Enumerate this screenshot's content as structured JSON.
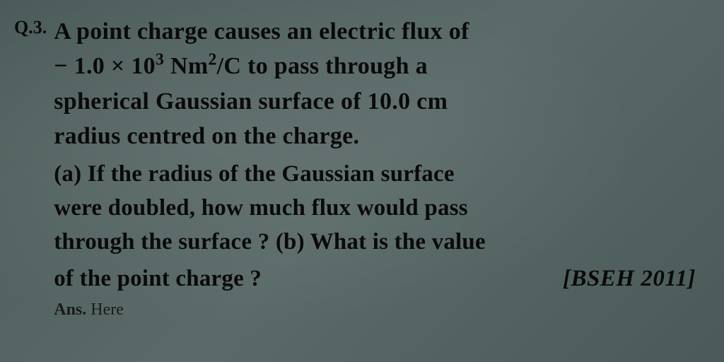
{
  "question": {
    "number": "Q.3.",
    "stem_line1": "A point charge causes an electric flux of",
    "flux_value": "− 1.0 × 10",
    "flux_exp": "3",
    "flux_unit_pre": " Nm",
    "flux_unit_exp": "2",
    "flux_unit_post": "/C to pass through a",
    "stem_line3": "spherical Gaussian surface of 10.0 cm",
    "stem_line4": "radius centred on the charge.",
    "part_a_label": "(a)",
    "part_a_text1": " If the radius of the Gaussian surface",
    "part_a_text2": "were doubled, how much flux would pass",
    "part_a_text3": "through the surface ? ",
    "part_b_label": "(b)",
    "part_b_text": " What is the value",
    "part_b_text2": "of the point charge ?",
    "source": "[BSEH 2011]"
  },
  "answer": {
    "label": "Ans.",
    "text": " Here"
  },
  "styling": {
    "background_color": "#4a5a58",
    "text_color": "#0a0a0a",
    "stem_fontsize": 34,
    "parts_fontsize": 33,
    "qnum_fontsize": 26,
    "font_family": "Georgia"
  }
}
